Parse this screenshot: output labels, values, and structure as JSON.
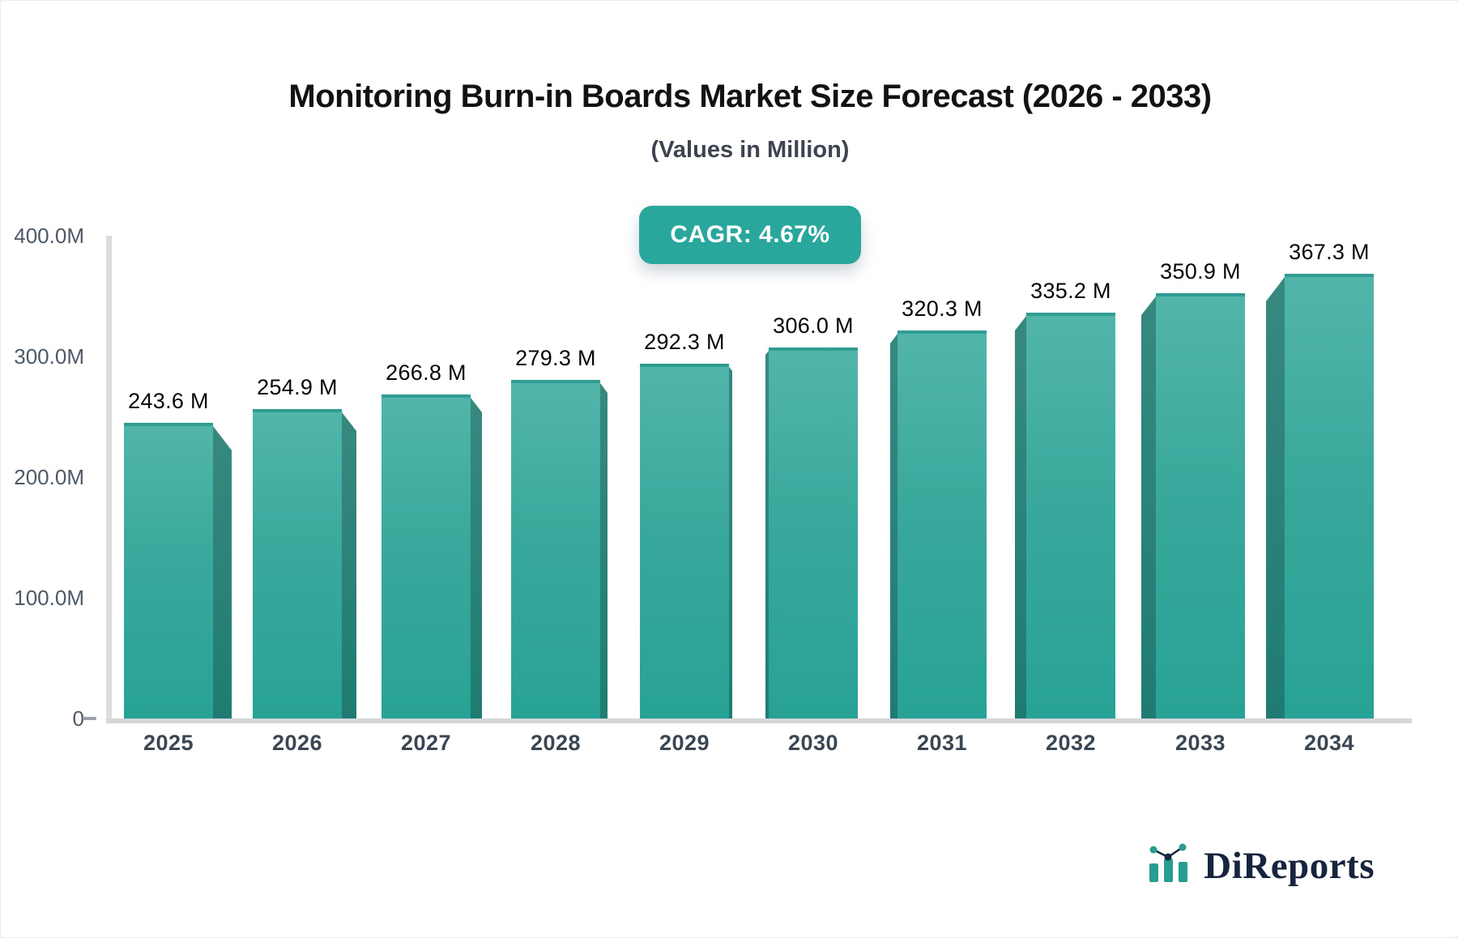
{
  "title": "Monitoring Burn-in Boards Market Size Forecast (2026 - 2033)",
  "subtitle": "(Values in Million)",
  "badge": {
    "label": "CAGR: 4.67%"
  },
  "brand": {
    "name": "DiReports"
  },
  "colors": {
    "accent_teal": "#2aa79c",
    "bar_face_top": "#52b5aa",
    "bar_face_bottom": "#28a296",
    "bar_side_dark": "#1f7c72",
    "axis_gray": "#d9dade",
    "tick_text": "#4d5966",
    "category_text": "#3b4653",
    "brand_navy": "#16243d"
  },
  "chart_data": {
    "type": "bar",
    "title": "Monitoring Burn-in Boards Market Size Forecast (2026 - 2033)",
    "subtitle": "(Values in Million)",
    "categories": [
      "2025",
      "2026",
      "2027",
      "2028",
      "2029",
      "2030",
      "2031",
      "2032",
      "2033",
      "2034"
    ],
    "values": [
      243.6,
      254.9,
      266.8,
      279.3,
      292.3,
      306.0,
      320.3,
      335.2,
      350.9,
      367.3
    ],
    "value_labels": [
      "243.6 M",
      "254.9 M",
      "266.8 M",
      "279.3 M",
      "292.3 M",
      "306.0 M",
      "320.3 M",
      "335.2 M",
      "350.9 M",
      "367.3 M"
    ],
    "unit": "Million",
    "cagr": "4.67%",
    "ylabel": "",
    "xlabel": "",
    "ylim": [
      0,
      400
    ],
    "y_ticks": [
      400,
      300,
      200,
      100,
      0
    ],
    "y_tick_labels": [
      "400.0M",
      "300.0M",
      "200.0M",
      "100.0M",
      "0"
    ],
    "grid": false,
    "legend": "none",
    "style": "pseudo-3d bars, teal gradient"
  }
}
